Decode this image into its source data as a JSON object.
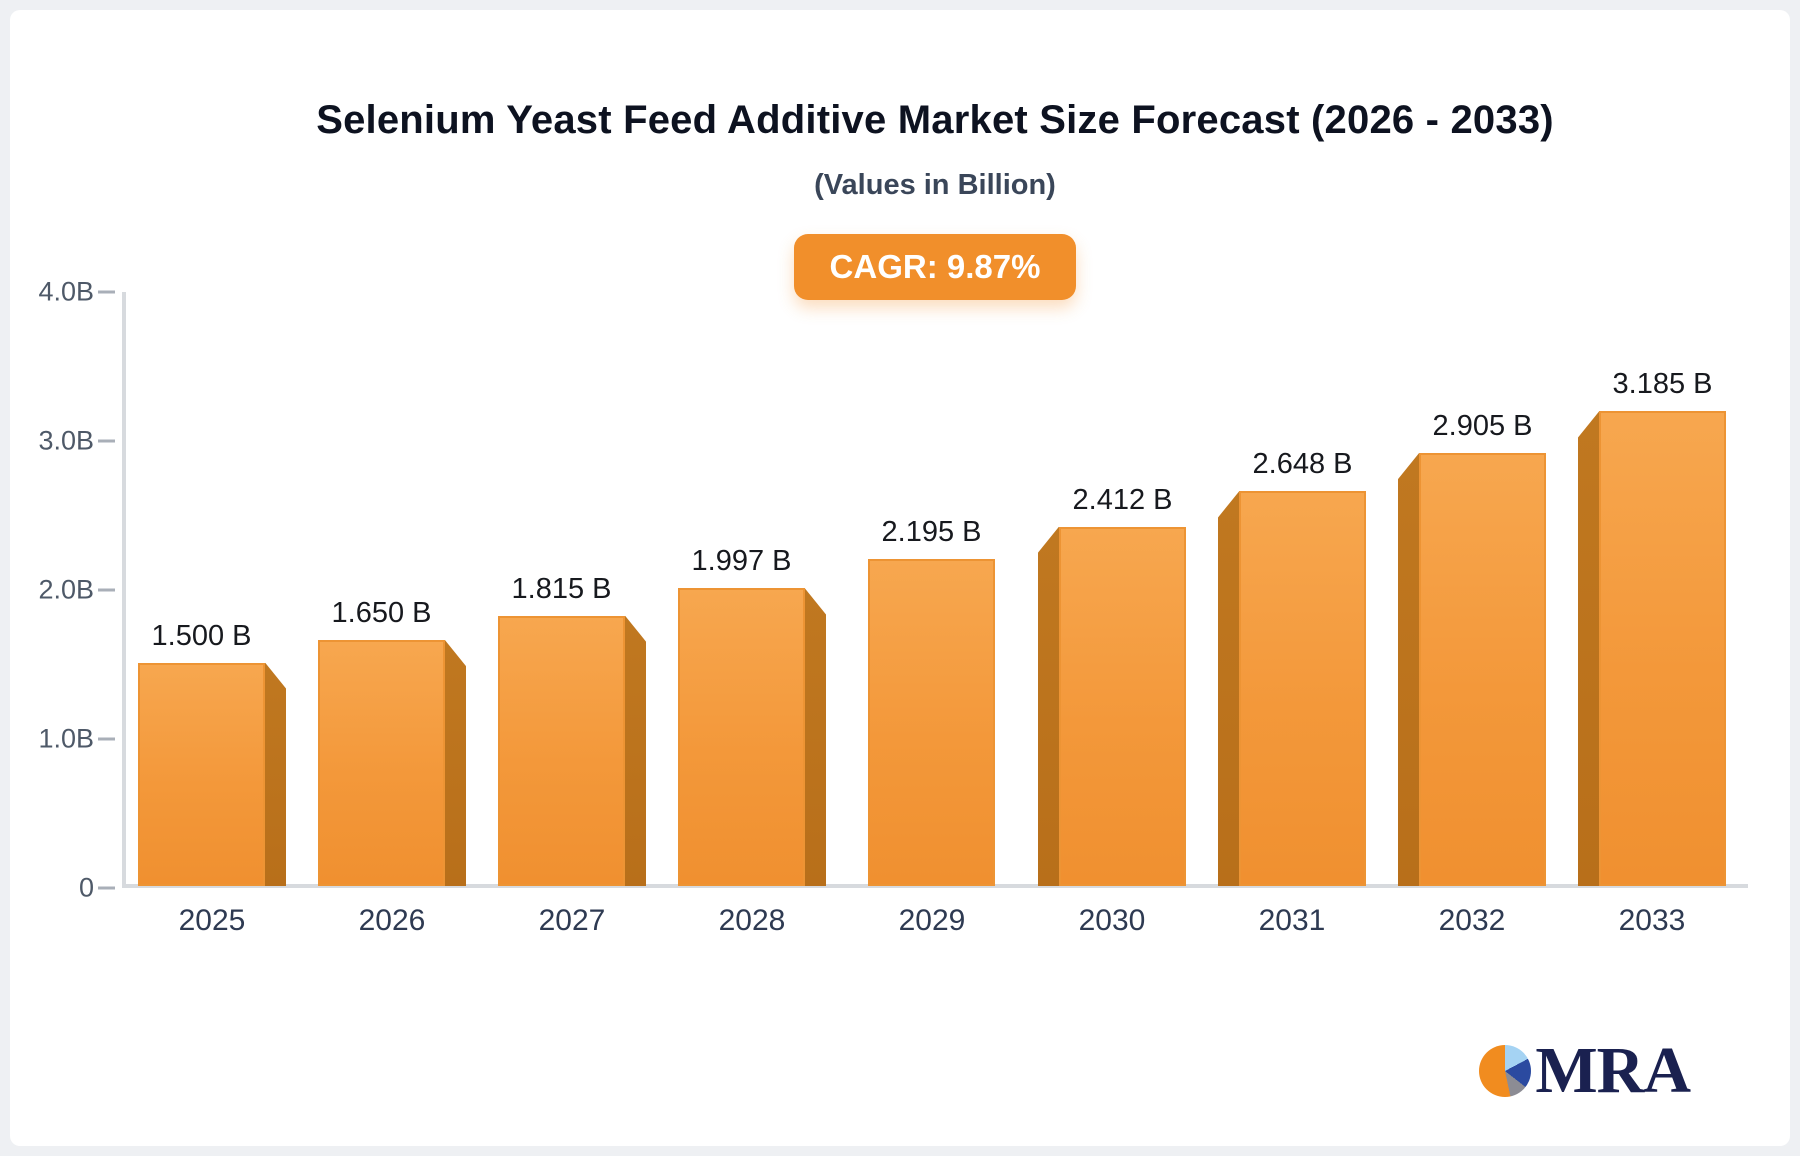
{
  "title": "Selenium Yeast Feed Additive Market Size Forecast (2026 - 2033)",
  "subtitle": "(Values in Billion)",
  "badge_label": "CAGR: 9.87%",
  "logo": {
    "text": "MRA",
    "icon": "pie-chart-icon"
  },
  "colors": {
    "bar_front_top": "#f7a74f",
    "bar_front_bottom": "#f09030",
    "bar_side": "#bd751d",
    "badge_bg": "#f18f2b",
    "axis_line": "#d7dade",
    "title_text": "#0d1220",
    "subtitle_text": "#3a4659",
    "logo_navy": "#1a2150"
  },
  "chart_data": {
    "type": "bar",
    "title": "Selenium Yeast Feed Additive Market Size Forecast (2026 - 2033)",
    "subtitle": "(Values in Billion)",
    "categories": [
      "2025",
      "2026",
      "2027",
      "2028",
      "2029",
      "2030",
      "2031",
      "2032",
      "2033"
    ],
    "values": [
      1.5,
      1.65,
      1.815,
      1.997,
      2.195,
      2.412,
      2.648,
      2.905,
      3.185
    ],
    "bar_labels": [
      "1.500 B",
      "1.650 B",
      "1.815 B",
      "1.997 B",
      "2.195 B",
      "2.412 B",
      "2.648 B",
      "2.905 B",
      "3.185 B"
    ],
    "xlabel": "",
    "ylabel": "",
    "ylim": [
      0,
      4
    ],
    "y_ticks": [
      {
        "value": 4,
        "label": "4.0B"
      },
      {
        "value": 3,
        "label": "3.0B"
      },
      {
        "value": 2,
        "label": "2.0B"
      },
      {
        "value": 1,
        "label": "1.0B"
      },
      {
        "value": 0,
        "label": "0"
      }
    ],
    "grid": false,
    "legend": "none",
    "annotation": "CAGR: 9.87%"
  }
}
